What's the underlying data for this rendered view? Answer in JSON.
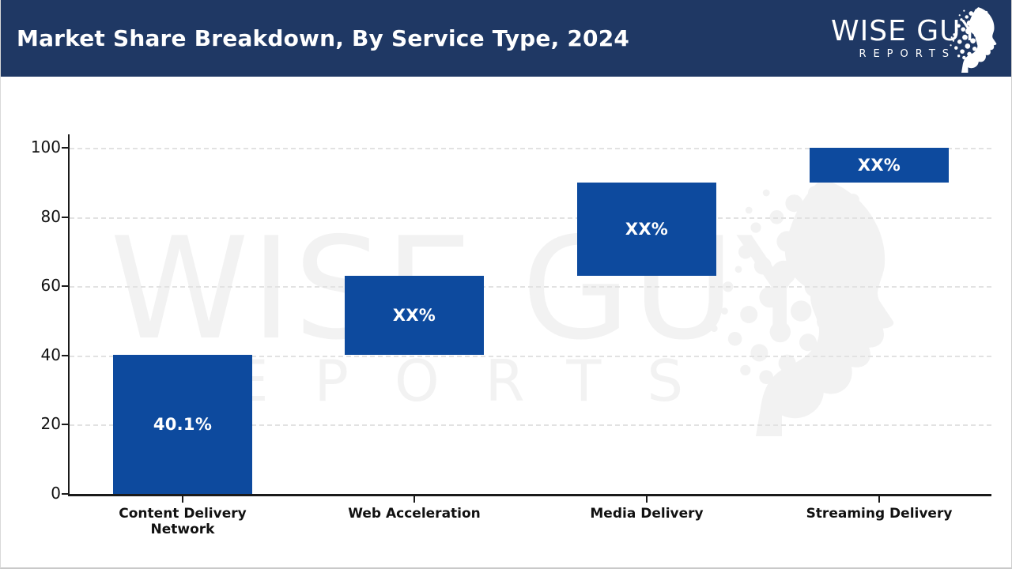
{
  "header": {
    "title": "Market Share Breakdown, By Service Type, 2024",
    "logo_line1": "WISE GUY",
    "logo_line2": "REPORTS"
  },
  "watermark": {
    "line1": "WISE GUY",
    "line2": "REPORTS"
  },
  "colors": {
    "header_bg": "#1f3864",
    "bar": "#0d4a9e",
    "grid": "#e2e2e2",
    "watermark": "#f2f2f2",
    "bar_label": "#ffffff"
  },
  "chart_data": {
    "type": "bar",
    "variant": "waterfall",
    "title": "Market Share Breakdown, By Service Type, 2024",
    "xlabel": "",
    "ylabel": "",
    "ylim": [
      0,
      100
    ],
    "yticks": [
      0,
      20,
      40,
      60,
      80,
      100
    ],
    "grid": "horizontal-dashed",
    "legend": "none",
    "categories": [
      "Content Delivery Network",
      "Web Acceleration",
      "Media Delivery",
      "Streaming Delivery"
    ],
    "bars": [
      {
        "category": "Content Delivery Network",
        "start": 0,
        "end": 40.1,
        "label": "40.1%"
      },
      {
        "category": "Web Acceleration",
        "start": 40.1,
        "end": 63,
        "label": "XX%"
      },
      {
        "category": "Media Delivery",
        "start": 63,
        "end": 90,
        "label": "XX%"
      },
      {
        "category": "Streaming Delivery",
        "start": 90,
        "end": 100,
        "label": "XX%"
      }
    ]
  }
}
